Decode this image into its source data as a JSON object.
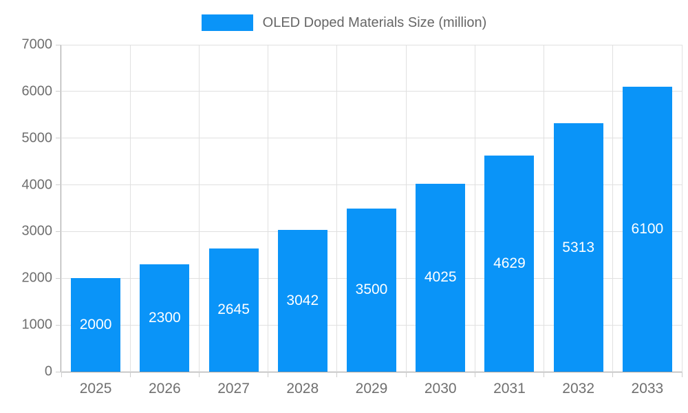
{
  "legend": {
    "label": "OLED Doped Materials Size (million)"
  },
  "colors": {
    "bar": "#0a94f8",
    "grid": "#e0e0e0",
    "axis_line": "#9b9b9b",
    "tick": "#cccccc",
    "axis_text": "#6f6f6f",
    "legend_text": "#666666",
    "value_label": "#ffffff",
    "background": "#ffffff"
  },
  "chart_data": {
    "type": "bar",
    "title": "",
    "xlabel": "",
    "ylabel": "",
    "series_name": "OLED Doped Materials Size (million)",
    "categories": [
      "2025",
      "2026",
      "2027",
      "2028",
      "2029",
      "2030",
      "2031",
      "2032",
      "2033"
    ],
    "values": [
      2000,
      2300,
      2645,
      3042,
      3500,
      4025,
      4629,
      5313,
      6100
    ],
    "ylim": [
      0,
      7000
    ],
    "yticks": [
      0,
      1000,
      2000,
      3000,
      4000,
      5000,
      6000,
      7000
    ],
    "grid": true,
    "legend_position": "top",
    "value_labels": "inside-center"
  }
}
